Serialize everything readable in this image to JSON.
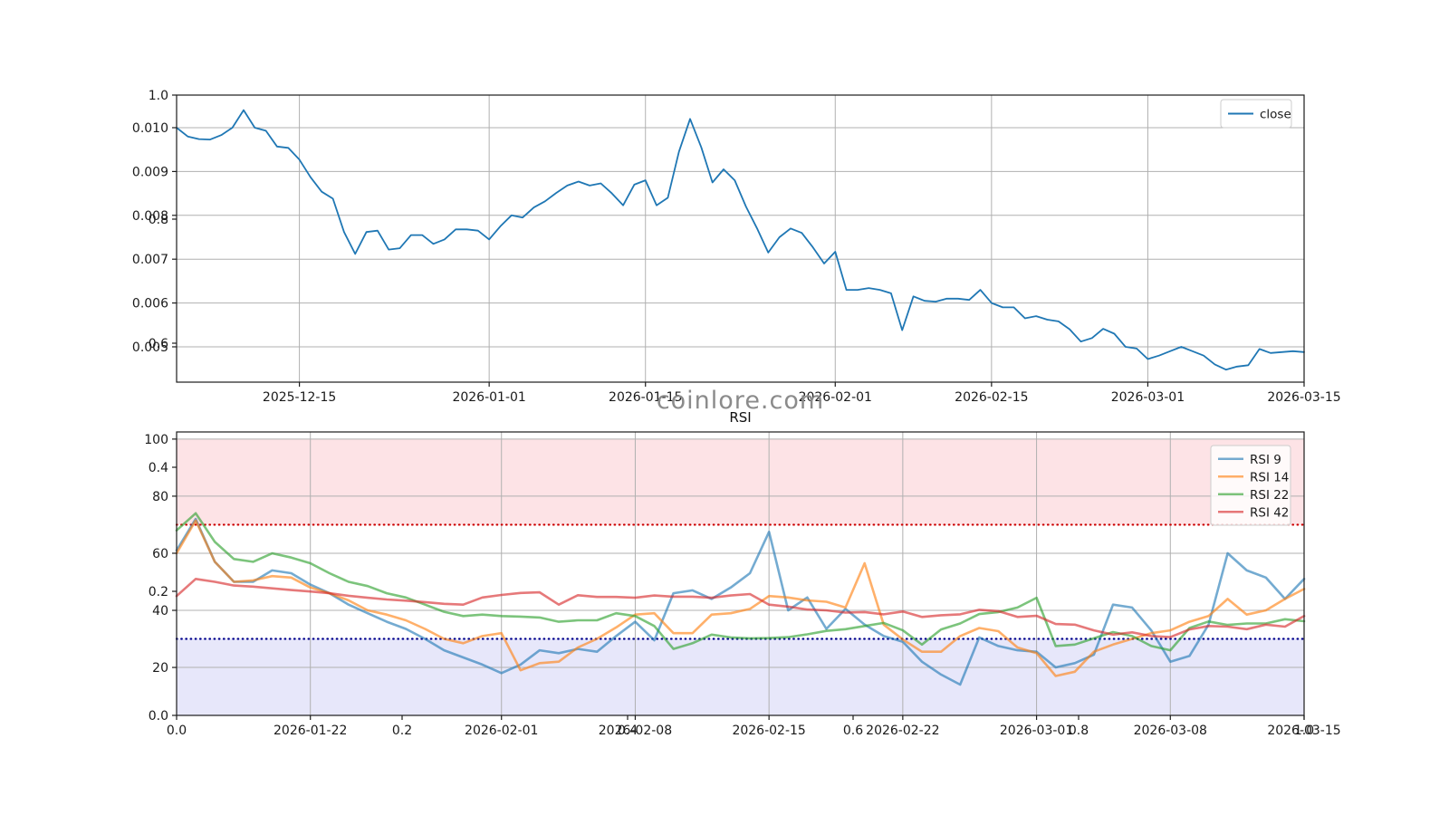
{
  "watermark": "coinlore.com",
  "overlay_axis": {
    "x_labels": [
      "0.0",
      "0.2",
      "0.4",
      "0.6",
      "0.8",
      "1.0"
    ],
    "y_labels": [
      "1.0",
      "0.8",
      "0.6",
      "0.4",
      "0.2",
      "0.0"
    ]
  },
  "chart_data": [
    {
      "type": "line",
      "title": "",
      "x_range": [
        "2025-12-04",
        "2026-03-15"
      ],
      "x_unit": "day",
      "ylim": [
        0.004194,
        0.010744
      ],
      "grid": true,
      "legend_position": "upper-right",
      "x_ticks": {
        "days": [
          11,
          28,
          42,
          59,
          73,
          87,
          101
        ],
        "labels": [
          "2025-12-15",
          "2026-01-01",
          "2026-01-15",
          "2026-02-01",
          "2026-02-15",
          "2026-03-01",
          "2026-03-15"
        ]
      },
      "y_ticks": {
        "values": [
          0.005,
          0.006,
          0.007,
          0.008,
          0.009,
          0.01
        ],
        "labels": [
          "0.005",
          "0.006",
          "0.007",
          "0.008",
          "0.009",
          "0.010"
        ]
      },
      "series": [
        {
          "name": "close",
          "color": "#1f77b4",
          "values": [
            0.01,
            0.0098,
            0.00974,
            0.00973,
            0.00983,
            0.01,
            0.0104,
            0.01,
            0.00993,
            0.00957,
            0.00954,
            0.00927,
            0.00887,
            0.00854,
            0.00838,
            0.00762,
            0.00712,
            0.00762,
            0.00765,
            0.00722,
            0.00725,
            0.00755,
            0.00755,
            0.00735,
            0.00745,
            0.00768,
            0.00768,
            0.00765,
            0.00745,
            0.00775,
            0.008,
            0.00795,
            0.00818,
            0.00832,
            0.00851,
            0.00868,
            0.00877,
            0.00868,
            0.00873,
            0.0085,
            0.00823,
            0.0087,
            0.0088,
            0.00823,
            0.0084,
            0.00945,
            0.0102,
            0.00955,
            0.00875,
            0.00905,
            0.0088,
            0.0082,
            0.0077,
            0.00715,
            0.0075,
            0.0077,
            0.0076,
            0.00727,
            0.0069,
            0.00717,
            0.0063,
            0.0063,
            0.00634,
            0.0063,
            0.00622,
            0.00538,
            0.00615,
            0.00605,
            0.00603,
            0.0061,
            0.0061,
            0.00607,
            0.0063,
            0.006,
            0.0059,
            0.0059,
            0.00565,
            0.0057,
            0.00562,
            0.00558,
            0.0054,
            0.00512,
            0.0052,
            0.00541,
            0.0053,
            0.005,
            0.00496,
            0.00472,
            0.0048,
            0.0049,
            0.005,
            0.0049,
            0.0048,
            0.0046,
            0.00448,
            0.00455,
            0.00458,
            0.00495,
            0.00486,
            0.00488,
            0.0049,
            0.00488
          ]
        }
      ]
    },
    {
      "type": "line",
      "title": "RSI",
      "x_range": [
        "2026-01-15",
        "2026-03-15"
      ],
      "x_unit": "day",
      "ylim": [
        3.2,
        102.5
      ],
      "grid": true,
      "legend_position": "upper-right",
      "overbought": {
        "value": 70,
        "top": 100,
        "line_color": "#cc0000",
        "band_color": "rgba(242,38,64,0.13)"
      },
      "oversold": {
        "value": 30,
        "line_color": "#00008b",
        "band_color": "rgba(58,58,214,0.12)"
      },
      "x_ticks": {
        "days": [
          7,
          17,
          24,
          31,
          38,
          45,
          52,
          59
        ],
        "labels": [
          "2026-01-22",
          "2026-02-01",
          "2026-02-08",
          "2026-02-15",
          "2026-02-22",
          "2026-03-01",
          "2026-03-08",
          "2026-03-15"
        ]
      },
      "y_ticks": {
        "values": [
          20,
          40,
          60,
          80,
          100
        ],
        "labels": [
          "20",
          "40",
          "60",
          "80",
          "100"
        ]
      },
      "series": [
        {
          "name": "RSI 9",
          "color": "#1f77b4",
          "values": [
            61,
            72,
            57,
            50,
            50,
            54,
            53,
            49,
            46,
            42,
            39,
            36,
            33.5,
            30,
            26,
            23.5,
            21,
            18,
            21,
            26,
            25,
            26.5,
            25.5,
            31,
            36,
            29.5,
            46,
            47,
            44,
            48,
            53,
            67.5,
            40,
            44.5,
            33.5,
            40.5,
            35,
            31,
            29,
            22,
            17.5,
            14,
            30.5,
            27.5,
            26,
            25.5,
            20,
            21.5,
            24.5,
            42,
            41,
            33,
            22,
            24,
            35,
            60,
            54,
            51.5,
            44,
            51
          ]
        },
        {
          "name": "RSI 14",
          "color": "#ff7f0e",
          "values": [
            60,
            71.5,
            57,
            50,
            50.5,
            52,
            51.5,
            48,
            46,
            43.5,
            40,
            38.5,
            36.5,
            33.5,
            30,
            28.5,
            31,
            32,
            19,
            21.5,
            22,
            27,
            30,
            34,
            38.5,
            39,
            32,
            32,
            38.5,
            39,
            40.5,
            45,
            44.5,
            43.5,
            43,
            41,
            56.5,
            35,
            29.8,
            25.5,
            25.5,
            31,
            33.8,
            32.7,
            27,
            25,
            17,
            18.5,
            25.5,
            28,
            30,
            32,
            33,
            36,
            38,
            44,
            38.5,
            40,
            44,
            47.5
          ]
        },
        {
          "name": "RSI 22",
          "color": "#2ca02c",
          "values": [
            68,
            74,
            64,
            58,
            57,
            60,
            58.5,
            56.5,
            53,
            50,
            48.5,
            46,
            44.5,
            42,
            39.5,
            38,
            38.5,
            38,
            37.8,
            37.5,
            36,
            36.5,
            36.5,
            39,
            38,
            34.5,
            26.5,
            28.5,
            31.5,
            30.5,
            30.2,
            30.3,
            30.6,
            31.6,
            32.8,
            33.4,
            34.5,
            35.6,
            33,
            28,
            33.3,
            35.4,
            38.7,
            39.4,
            41,
            44.4,
            27.5,
            28,
            30.2,
            32.4,
            31,
            27.5,
            26,
            33.8,
            36.1,
            34.9,
            35.4,
            35.4,
            36.9,
            36.2
          ]
        },
        {
          "name": "RSI 42",
          "color": "#d62728",
          "values": [
            45,
            51,
            50,
            48.7,
            48.3,
            47.7,
            47.1,
            46.6,
            46,
            45.1,
            44.4,
            43.8,
            43.4,
            42.9,
            42.3,
            42,
            44.5,
            45.4,
            46.1,
            46.3,
            42,
            45.3,
            44.7,
            44.7,
            44.4,
            45.2,
            44.8,
            44.8,
            44.4,
            45.2,
            45.7,
            42,
            41.3,
            40.3,
            40,
            39.2,
            39.4,
            38.6,
            39.6,
            37.7,
            38.3,
            38.6,
            40.2,
            39.7,
            37.7,
            38.1,
            35.2,
            35,
            33,
            31.5,
            32.3,
            31,
            30.6,
            33.3,
            34.5,
            34.3,
            33.4,
            35,
            34.3,
            38
          ]
        }
      ]
    }
  ]
}
